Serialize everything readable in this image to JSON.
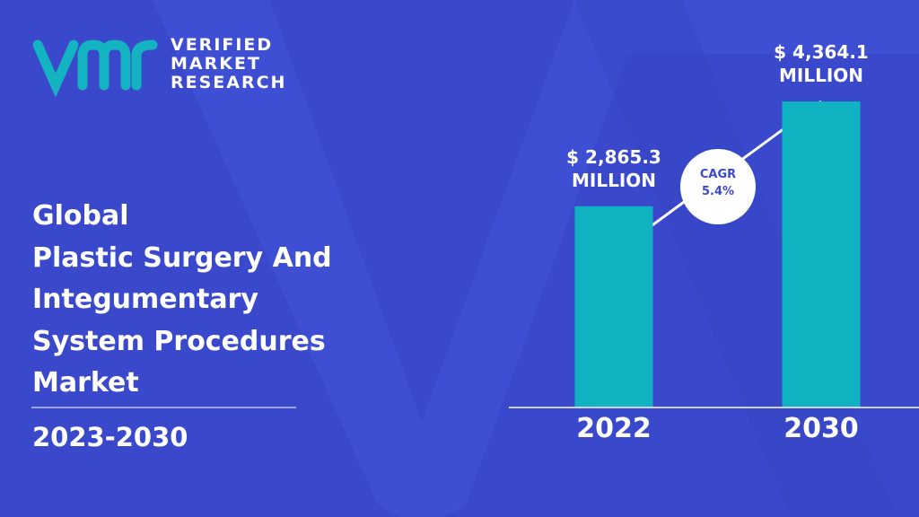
{
  "logo": [
    "VERIFIED",
    "MARKET",
    "RESEARCH"
  ],
  "title_lines": [
    "Global",
    "Plastic Surgery And",
    "Integumentary",
    "System Procedures",
    "Market"
  ],
  "period": "2023-2030",
  "chart_data": {
    "type": "bar",
    "categories": [
      "2022",
      "2030"
    ],
    "values": [
      2865.3,
      4364.1
    ],
    "value_labels": [
      "$ 2,865.3 MILLION",
      "$ 4,364.1 MILLION"
    ],
    "color": "#10b2c1",
    "annotation": {
      "label": "CAGR",
      "value": "5.4%"
    }
  }
}
